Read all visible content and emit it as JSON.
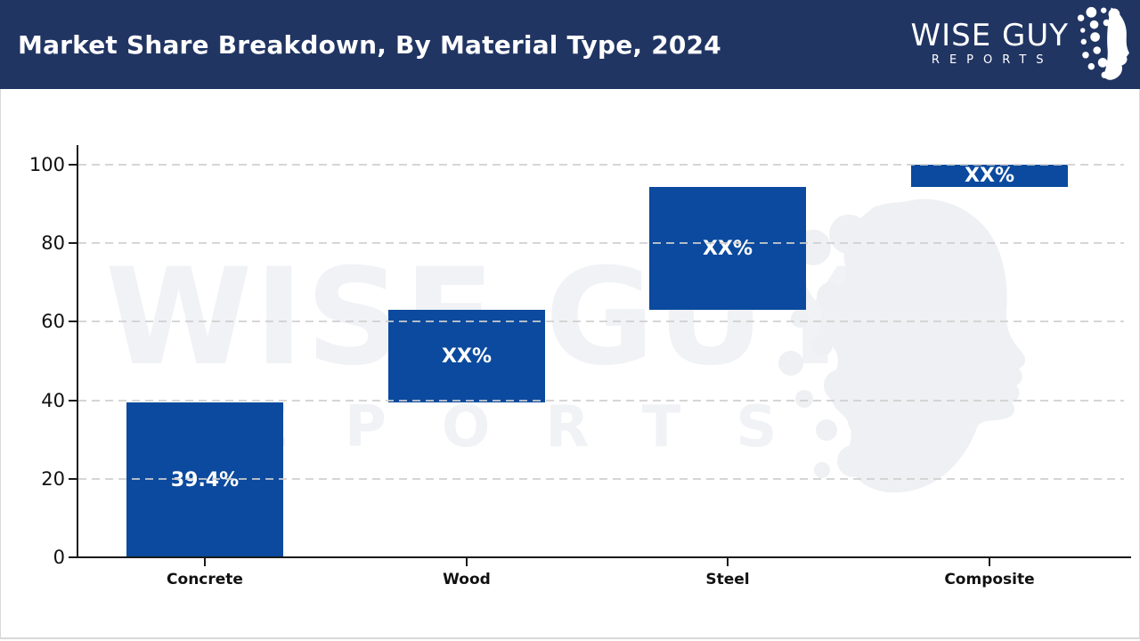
{
  "header": {
    "title": "Market Share Breakdown, By Material Type, 2024",
    "bg_color": "#213563",
    "brand": {
      "line1": "WISE GUY",
      "line2": "REPORTS"
    }
  },
  "watermark": {
    "line1": "WISE GUY",
    "line2": "REPORTS"
  },
  "chart_data": {
    "type": "bar",
    "subtype": "waterfall-stacked-breakdown",
    "title": "Market Share Breakdown, By Material Type, 2024",
    "categories": [
      "Concrete",
      "Wood",
      "Steel",
      "Composite"
    ],
    "segments": [
      {
        "category": "Concrete",
        "start": 0,
        "end": 39.4,
        "label": "39.4%"
      },
      {
        "category": "Wood",
        "start": 39.4,
        "end": 63,
        "label": "XX%"
      },
      {
        "category": "Steel",
        "start": 63,
        "end": 94.3,
        "label": "XX%"
      },
      {
        "category": "Composite",
        "start": 94.3,
        "end": 100,
        "label": "XX%"
      }
    ],
    "xlabel": "",
    "ylabel": "",
    "ylim": [
      0,
      105
    ],
    "yticks": [
      0,
      20,
      40,
      60,
      80,
      100
    ],
    "grid": "horizontal-dashed-over-bars",
    "legend": "none",
    "bar_color": "#0b4a9e",
    "label_color": "#ffffff"
  }
}
